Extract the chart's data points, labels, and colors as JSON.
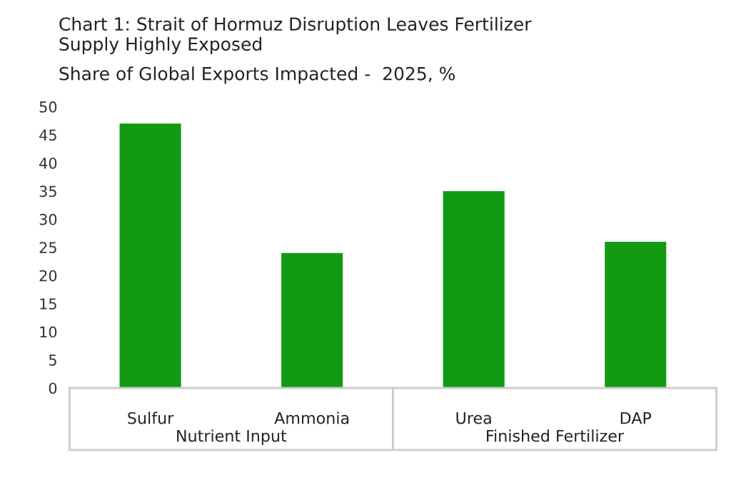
{
  "chart_data": {
    "type": "bar",
    "title": "Chart 1: Strait of Hormuz Disruption Leaves Fertilizer\nSupply Highly Exposed",
    "subtitle": "Share of Global Exports Impacted -  2025, %",
    "categories": [
      "Sulfur",
      "Ammonia",
      "Urea",
      "DAP"
    ],
    "values": [
      47,
      24,
      35,
      26
    ],
    "color": "#129a12",
    "ylim": [
      0,
      50
    ],
    "yticks": [
      0,
      5,
      10,
      15,
      20,
      25,
      30,
      35,
      40,
      45,
      50
    ],
    "grid": false,
    "annotations": [
      "Nutrient Input",
      "Finished Fertilizer"
    ]
  }
}
